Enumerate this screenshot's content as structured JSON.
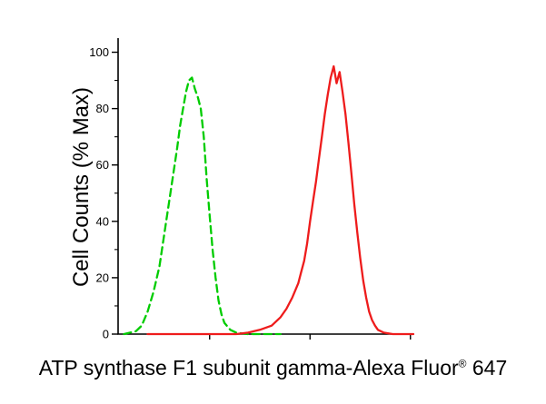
{
  "caption": {
    "text": "ATP synthase F1 subunit gamma-Alexa Fluor",
    "registered_mark": "®",
    "suffix": " 647"
  },
  "chart_data": {
    "type": "line",
    "title": "",
    "xlabel": "",
    "ylabel": "Cell Counts (% Max)",
    "xlim": [
      0,
      100
    ],
    "ylim": [
      0,
      105
    ],
    "yticks": [
      0,
      20,
      40,
      60,
      80,
      100
    ],
    "yticks_minor": [
      10,
      30,
      50,
      70,
      90
    ],
    "xticks_unlabeled": [
      31,
      65,
      99
    ],
    "grid": false,
    "legend": "none",
    "axis_color": "#000000",
    "series": [
      {
        "name": "green-dashed-control",
        "color": "#00cc00",
        "style": "dashed",
        "x": [
          2,
          6,
          8,
          10,
          12,
          14,
          16,
          18,
          20,
          21,
          22,
          23,
          24,
          25,
          26,
          27,
          28,
          29,
          30,
          31,
          32,
          33,
          34,
          35,
          36,
          38,
          40,
          44,
          50,
          55
        ],
        "y": [
          0,
          1,
          3,
          8,
          15,
          24,
          38,
          52,
          66,
          74,
          80,
          86,
          90,
          91,
          87,
          84,
          80,
          70,
          55,
          42,
          30,
          20,
          12,
          7,
          4,
          1.5,
          0.5,
          0,
          0,
          0
        ]
      },
      {
        "name": "red-solid-antibody",
        "color": "#ee1c1c",
        "style": "solid",
        "x": [
          10,
          20,
          30,
          40,
          44,
          48,
          52,
          55,
          57,
          59,
          61,
          62,
          63,
          64,
          65,
          66,
          67,
          68,
          69,
          70,
          71,
          72,
          73,
          74,
          75,
          76,
          77,
          78,
          79,
          80,
          81,
          82,
          83,
          84,
          85,
          86,
          87,
          88,
          90,
          93,
          96,
          100
        ],
        "y": [
          0,
          0,
          0,
          0,
          0.5,
          1.5,
          3,
          6,
          9,
          13,
          18,
          22,
          26,
          32,
          40,
          47,
          54,
          62,
          70,
          78,
          85,
          91,
          95,
          89,
          93,
          86,
          78,
          68,
          57,
          46,
          36,
          27,
          19,
          13,
          8,
          5,
          3,
          1.5,
          0.5,
          0,
          0,
          0
        ]
      }
    ]
  }
}
